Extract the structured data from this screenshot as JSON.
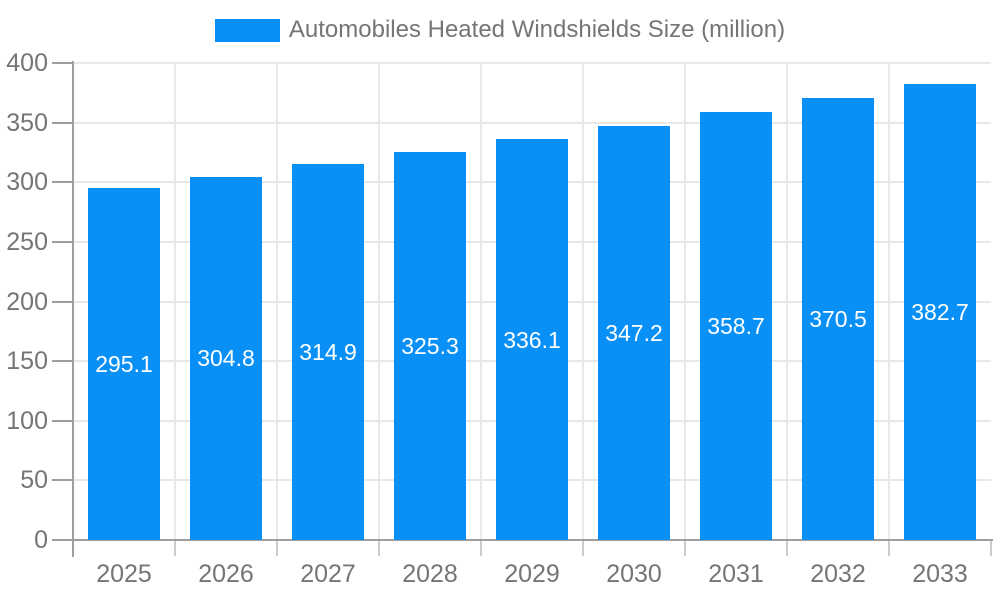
{
  "chart_data": {
    "type": "bar",
    "title": "Automobiles Heated Windshields Size (million)",
    "categories": [
      "2025",
      "2026",
      "2027",
      "2028",
      "2029",
      "2030",
      "2031",
      "2032",
      "2033"
    ],
    "values": [
      295.1,
      304.8,
      314.9,
      325.3,
      336.1,
      347.2,
      358.7,
      370.5,
      382.7
    ],
    "value_labels": [
      "295.1",
      "304.8",
      "314.9",
      "325.3",
      "336.1",
      "347.2",
      "358.7",
      "370.5",
      "382.7"
    ],
    "ylim": [
      0,
      400
    ],
    "yticks": [
      0,
      50,
      100,
      150,
      200,
      250,
      300,
      350,
      400
    ],
    "ytick_labels": [
      "0",
      "50",
      "100",
      "150",
      "200",
      "250",
      "300",
      "350",
      "400"
    ],
    "grid": true,
    "legend_position": "top-center",
    "value_label_position": "inside-center",
    "xlabel": "",
    "ylabel": "",
    "colors": {
      "bar": "#0990f6",
      "grid": "#e8e8e8",
      "axis": "#9e9e9e",
      "boundary_tick": "#cccccc",
      "text": "#757575",
      "value_text": "#ffffff",
      "background": "#ffffff"
    }
  }
}
